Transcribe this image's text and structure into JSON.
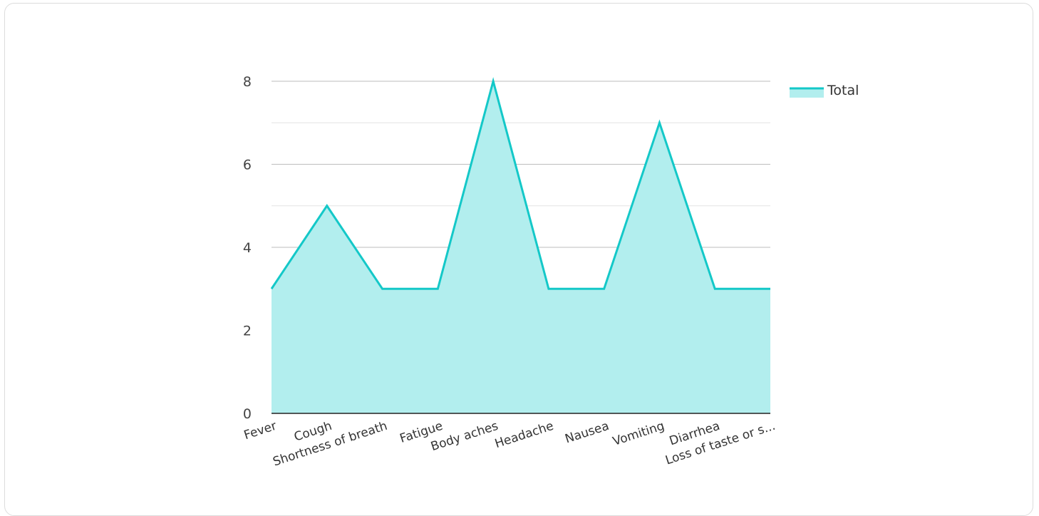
{
  "chart_data": {
    "type": "area",
    "categories": [
      "Fever",
      "Cough",
      "Shortness of breath",
      "Fatigue",
      "Body aches",
      "Headache",
      "Nausea",
      "Vomiting",
      "Diarrhea",
      "Loss of taste or s..."
    ],
    "series": [
      {
        "name": "Total",
        "values": [
          3,
          5,
          3,
          3,
          8,
          3,
          3,
          7,
          3,
          3
        ]
      }
    ],
    "y_ticks": [
      "0",
      "2",
      "4",
      "6",
      "8"
    ],
    "ylim": [
      0,
      8
    ],
    "grid": true,
    "legend_position": "top-right",
    "colors": {
      "line": "#14c8c8",
      "fill": "#b2eeee",
      "grid_major": "#bdbdbd",
      "grid_minor": "#e4e4e4",
      "axis": "#222222"
    }
  }
}
